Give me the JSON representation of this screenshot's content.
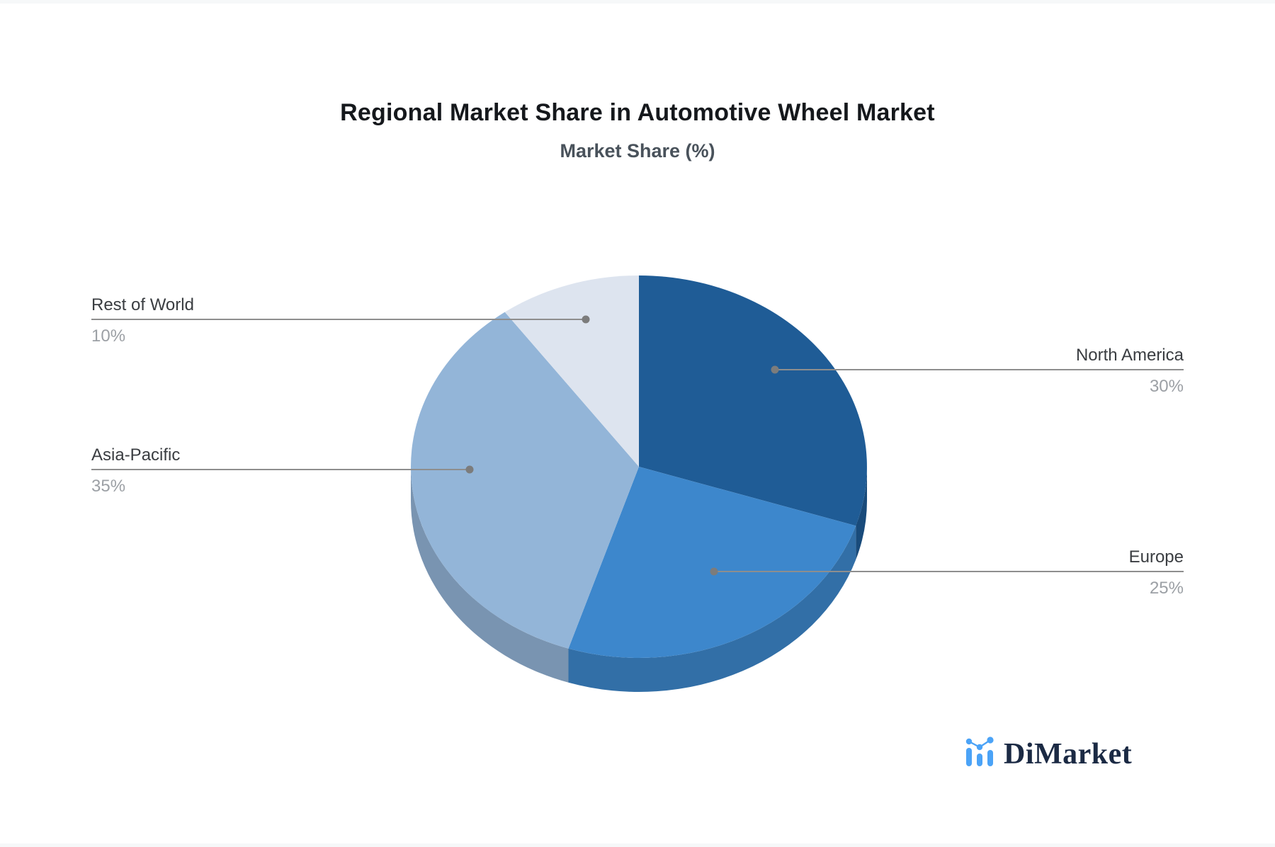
{
  "title": "Regional Market Share in Automotive Wheel Market",
  "subtitle": "Market Share (%)",
  "chart_data": {
    "type": "pie",
    "style": "3d-pie",
    "title": "Regional Market Share in Automotive Wheel Market",
    "subtitle": "Market Share (%)",
    "unit": "%",
    "start_angle": "12-o'clock",
    "direction": "clockwise",
    "legend_position": "callout-labels",
    "labels": [
      "North America",
      "Europe",
      "Asia-Pacific",
      "Rest of World"
    ],
    "values": [
      30,
      25,
      35,
      10
    ],
    "value_labels": [
      "30%",
      "25%",
      "35%",
      "10%"
    ],
    "colors": [
      "#1F5C96",
      "#3D87CC",
      "#93B5D8",
      "#DDE4EF"
    ],
    "callout_sides": [
      "right",
      "right",
      "left",
      "left"
    ],
    "leader_line_color": "#8E8E8E",
    "label_text_color": "#3A3D41",
    "value_text_color": "#9CA0A5"
  },
  "branding": {
    "logo_text": "DiMarket",
    "logo_icon": "bar-chart-trend-icon",
    "logo_icon_color": "#4BA3F7",
    "logo_text_color": "#1B2A44"
  }
}
